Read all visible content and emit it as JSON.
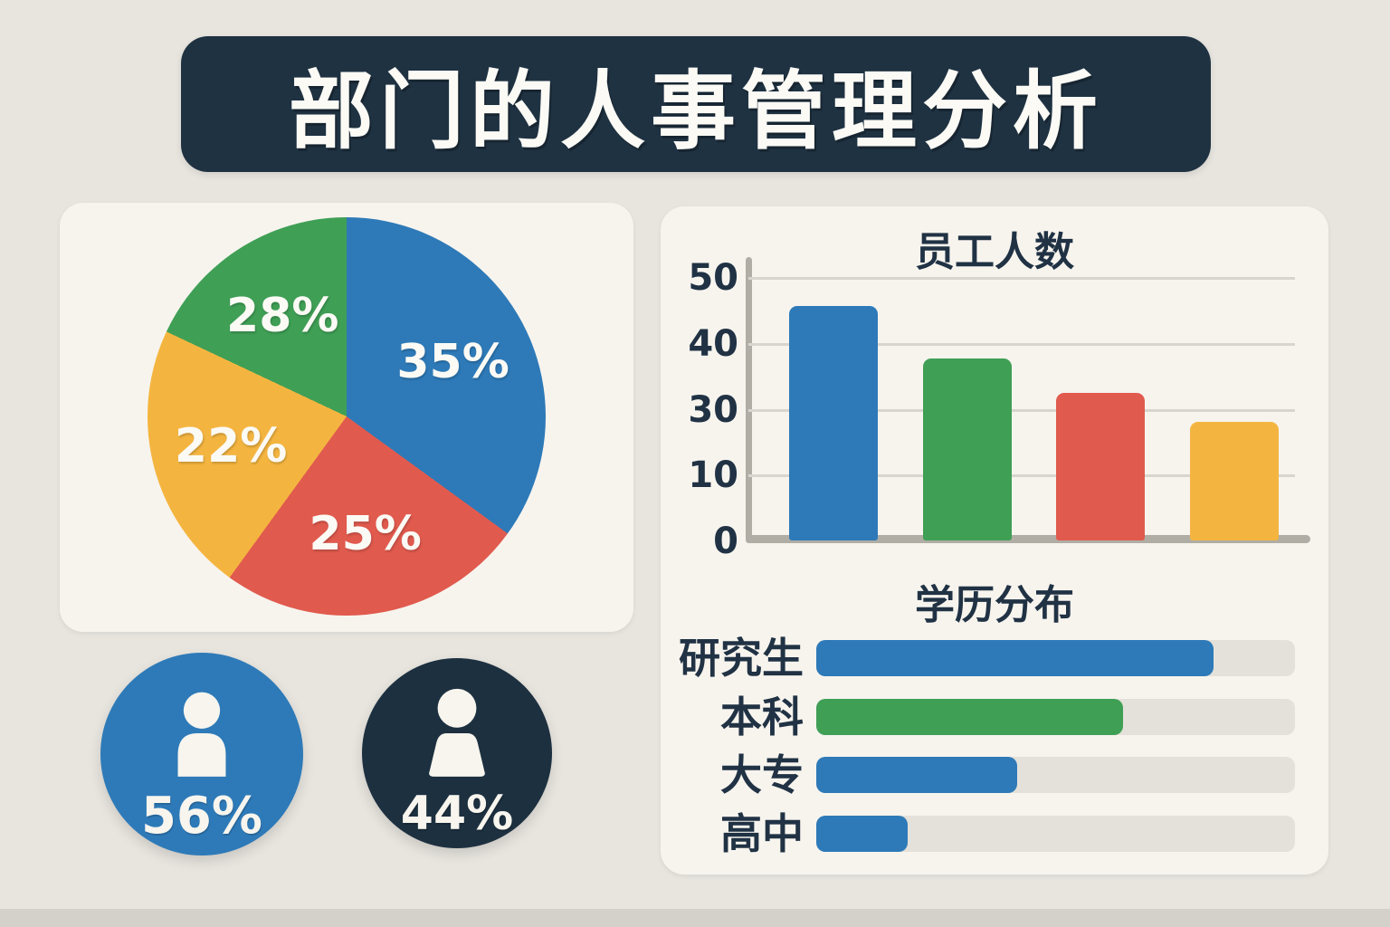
{
  "page_title": "部门的人事管理分析",
  "colors": {
    "background": "#e8e5df",
    "card": "#f7f4ee",
    "banner": "#1f3242",
    "text_dark": "#203244",
    "text_light": "#fbfaf5",
    "blue": "#2e7ab8",
    "green": "#3f9f55",
    "red": "#e15a4e",
    "yellow": "#f4b540",
    "navy": "#1d3040",
    "track_gray": "#e4e1da",
    "gridline": "#d8d5ce",
    "axis": "#b0ada5"
  },
  "chart_data": [
    {
      "type": "pie",
      "title": "",
      "legend_position": "none",
      "slices": [
        {
          "label": "35%",
          "value": 35,
          "color": "#2e7ab8"
        },
        {
          "label": "25%",
          "value": 25,
          "color": "#e15a4e"
        },
        {
          "label": "22%",
          "value": 22,
          "color": "#f4b540"
        },
        {
          "label": "28%",
          "value": 28,
          "color": "#3f9f55"
        }
      ],
      "start_angle_deg": 0,
      "direction": "clockwise"
    },
    {
      "type": "bar",
      "title": "员工人数",
      "xlabel": "",
      "ylabel": "",
      "y_ticks": [
        "50",
        "40",
        "30",
        "10",
        "0"
      ],
      "ylim": [
        0,
        50
      ],
      "grid": true,
      "categories": [
        "",
        "",
        "",
        ""
      ],
      "bars": [
        {
          "value": 46,
          "height_pct": 89,
          "color": "#2e7ab8"
        },
        {
          "value": 38,
          "height_pct": 69,
          "color": "#3f9f55"
        },
        {
          "value": 33,
          "height_pct": 56,
          "color": "#e15a4e"
        },
        {
          "value": 28,
          "height_pct": 45,
          "color": "#f4b540"
        }
      ]
    },
    {
      "type": "bar",
      "orientation": "horizontal",
      "title": "学历分布",
      "xlabel": "",
      "ylabel": "",
      "grid": false,
      "rows": [
        {
          "label": "研究生",
          "fill_pct": 83,
          "color": "#2e7ab8"
        },
        {
          "label": "本科",
          "fill_pct": 64,
          "color": "#3f9f55"
        },
        {
          "label": "大专",
          "fill_pct": 42,
          "color": "#2e7ab8"
        },
        {
          "label": "高中",
          "fill_pct": 19,
          "color": "#2e7ab8"
        }
      ]
    }
  ],
  "person_stats": {
    "items": [
      {
        "value": "56%",
        "style": "blue"
      },
      {
        "value": "44%",
        "style": "navy"
      }
    ]
  }
}
